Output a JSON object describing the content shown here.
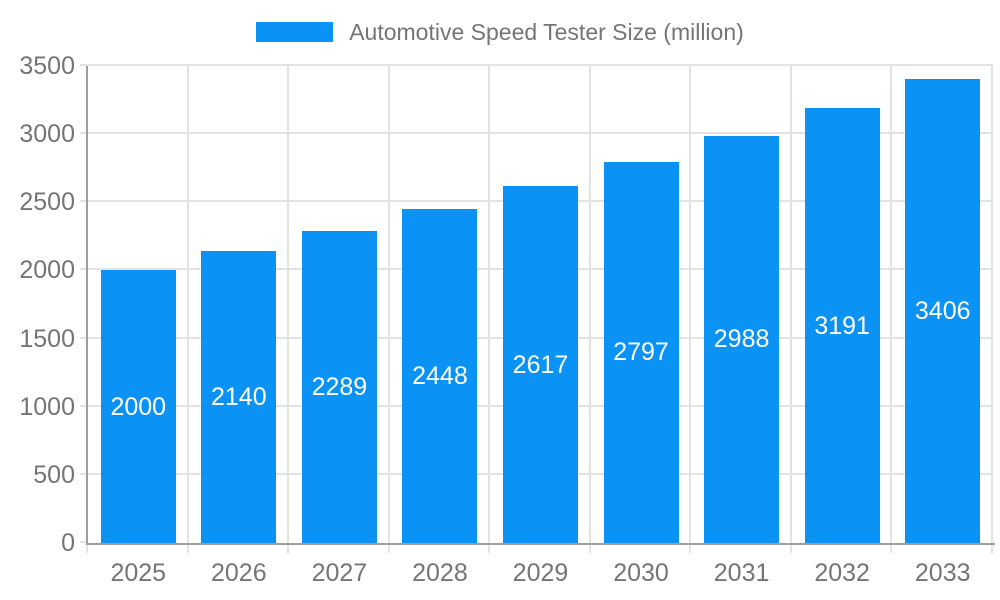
{
  "chart_data": {
    "type": "bar",
    "title": "Automotive Speed Tester Size (million)",
    "categories": [
      "2025",
      "2026",
      "2027",
      "2028",
      "2029",
      "2030",
      "2031",
      "2032",
      "2033"
    ],
    "values": [
      2000,
      2140,
      2289,
      2448,
      2617,
      2797,
      2988,
      3191,
      3406
    ],
    "yticks": [
      0,
      500,
      1000,
      1500,
      2000,
      2500,
      3000,
      3500
    ],
    "ylim": [
      0,
      3500
    ],
    "grid": true,
    "legend_position": "top-center",
    "bar_color": "#0b92f5",
    "bar_label_color": "#ffffff",
    "axis_color": "#9e9e9e",
    "grid_color": "#e2e2e2",
    "text_color": "#757575"
  }
}
